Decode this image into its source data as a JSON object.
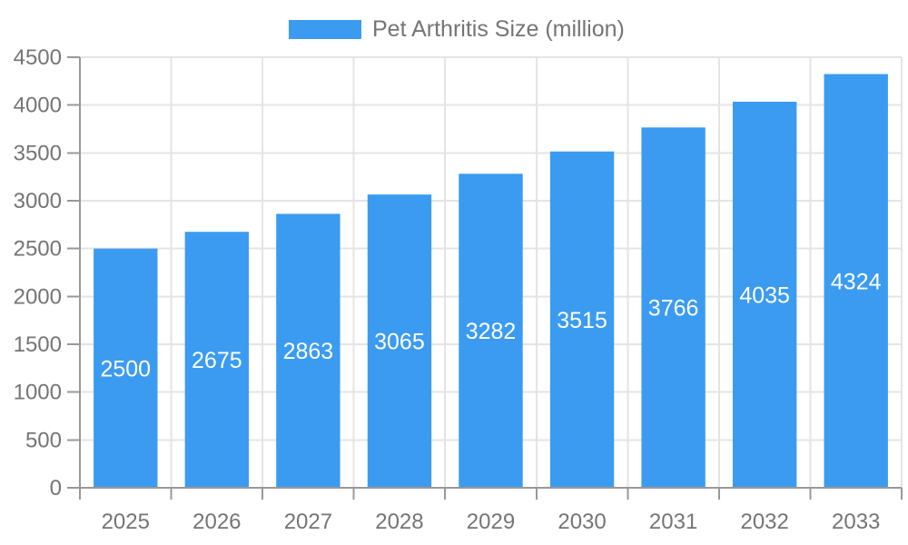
{
  "legend": {
    "label": "Pet Arthritis Size (million)"
  },
  "colors": {
    "bar": "#3B9BF0",
    "grid_line": "#E4E4E4",
    "axis_line": "#999999",
    "axis_text": "#757575",
    "bar_label": "#FFFFFF",
    "background": "#FFFFFF"
  },
  "chart_data": {
    "type": "bar",
    "title": "",
    "legend_entries": [
      "Pet Arthritis Size (million)"
    ],
    "categories": [
      "2025",
      "2026",
      "2027",
      "2028",
      "2029",
      "2030",
      "2031",
      "2032",
      "2033"
    ],
    "series": [
      {
        "name": "Pet Arthritis Size (million)",
        "values": [
          2500,
          2675,
          2863,
          3065,
          3282,
          3515,
          3766,
          4035,
          4324
        ]
      }
    ],
    "xlabel": "",
    "ylabel": "",
    "ylim": [
      0,
      4500
    ],
    "ytick_step": 500,
    "yticks": [
      0,
      500,
      1000,
      1500,
      2000,
      2500,
      3000,
      3500,
      4000,
      4500
    ],
    "grid": true,
    "legend_position": "top-center",
    "data_labels_position": "inside-center"
  }
}
